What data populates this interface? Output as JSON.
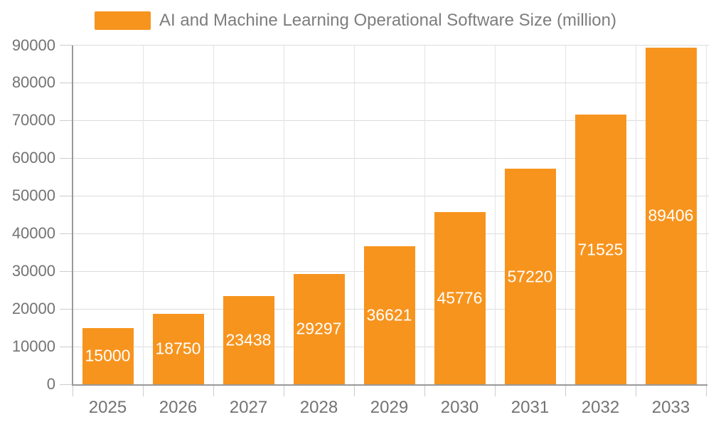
{
  "chart_data": {
    "type": "bar",
    "title": "AI and Machine Learning Operational Software Size (million)",
    "categories": [
      "2025",
      "2026",
      "2027",
      "2028",
      "2029",
      "2030",
      "2031",
      "2032",
      "2033"
    ],
    "values": [
      15000,
      18750,
      23438,
      29297,
      36621,
      45776,
      57220,
      71525,
      89406
    ],
    "value_labels": [
      "15000",
      "18750",
      "23438",
      "29297",
      "36621",
      "45776",
      "57220",
      "71525",
      "89406"
    ],
    "xlabel": "",
    "ylabel": "",
    "ylim": [
      0,
      90000
    ],
    "y_ticks": [
      0,
      10000,
      20000,
      30000,
      40000,
      50000,
      60000,
      70000,
      80000,
      90000
    ],
    "y_tick_labels": [
      "0",
      "10000",
      "20000",
      "30000",
      "40000",
      "50000",
      "60000",
      "70000",
      "80000",
      "90000"
    ],
    "grid": true,
    "grid_horizontal": true,
    "grid_vertical": true,
    "legend": {
      "label": "AI and Machine Learning Operational Software Size (million)",
      "position": "top-center",
      "swatch": "rect"
    },
    "value_label_position": "inside-center"
  },
  "style": {
    "bar_color": "#f7941e",
    "background_color": "#ffffff",
    "hgrid_color": "#dcdcdc",
    "vgrid_color": "#e4e4e4",
    "axis_line_color": "#999999",
    "tick_mark_color": "#cccccc",
    "axis_label_color": "#737373",
    "legend_text_color": "#7d7d7d",
    "value_label_color": "#ffffff"
  }
}
